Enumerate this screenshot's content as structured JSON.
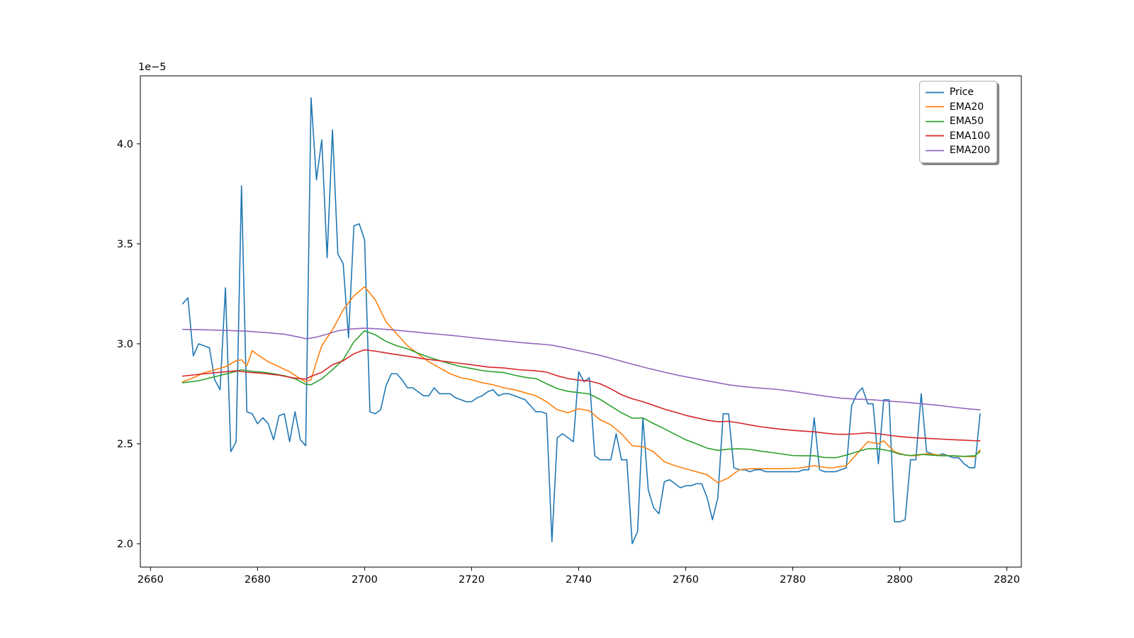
{
  "figure": {
    "background": "#ffffff",
    "y_offset_label": "1e−5"
  },
  "chart_data": {
    "type": "line",
    "title": "",
    "xlabel": "",
    "ylabel": "",
    "grid": false,
    "legend_position": "upper right",
    "xlim": [
      2658.1,
      2822.7
    ],
    "ylim": [
      1.883,
      4.34
    ],
    "xticks": [
      2660,
      2680,
      2700,
      2720,
      2740,
      2760,
      2780,
      2800,
      2820
    ],
    "xtick_labels": [
      "2660",
      "2680",
      "2700",
      "2720",
      "2740",
      "2760",
      "2780",
      "2800",
      "2820"
    ],
    "yticks": [
      2.0,
      2.5,
      3.0,
      3.5,
      4.0
    ],
    "ytick_labels": [
      "2.0",
      "2.5",
      "3.0",
      "3.5",
      "4.0"
    ],
    "y_offset_label": "1e−5",
    "series": [
      {
        "name": "Price",
        "color": "#1f77b4",
        "x": [
          2666,
          2667,
          2668,
          2669,
          2670,
          2671,
          2672,
          2673,
          2674,
          2675,
          2676,
          2677,
          2678,
          2679,
          2680,
          2681,
          2682,
          2683,
          2684,
          2685,
          2686,
          2687,
          2688,
          2689,
          2690,
          2691,
          2692,
          2693,
          2694,
          2695,
          2696,
          2697,
          2698,
          2699,
          2700,
          2701,
          2702,
          2703,
          2704,
          2705,
          2706,
          2707,
          2708,
          2709,
          2710,
          2711,
          2712,
          2713,
          2714,
          2715,
          2716,
          2717,
          2718,
          2719,
          2720,
          2721,
          2722,
          2723,
          2724,
          2725,
          2726,
          2727,
          2728,
          2729,
          2730,
          2731,
          2732,
          2733,
          2734,
          2735,
          2736,
          2737,
          2738,
          2739,
          2740,
          2741,
          2742,
          2743,
          2744,
          2745,
          2746,
          2747,
          2748,
          2749,
          2750,
          2751,
          2752,
          2753,
          2754,
          2755,
          2756,
          2757,
          2758,
          2759,
          2760,
          2761,
          2762,
          2763,
          2764,
          2765,
          2766,
          2767,
          2768,
          2769,
          2770,
          2771,
          2772,
          2773,
          2774,
          2775,
          2776,
          2777,
          2778,
          2779,
          2780,
          2781,
          2782,
          2783,
          2784,
          2785,
          2786,
          2787,
          2788,
          2789,
          2790,
          2791,
          2792,
          2793,
          2794,
          2795,
          2796,
          2797,
          2798,
          2799,
          2800,
          2801,
          2802,
          2803,
          2804,
          2805,
          2806,
          2807,
          2808,
          2809,
          2810,
          2811,
          2812,
          2813,
          2814,
          2815
        ],
        "y": [
          3.2,
          3.23,
          2.94,
          3.0,
          2.99,
          2.98,
          2.82,
          2.77,
          3.28,
          2.46,
          2.51,
          3.79,
          2.66,
          2.65,
          2.6,
          2.63,
          2.6,
          2.52,
          2.64,
          2.65,
          2.51,
          2.66,
          2.52,
          2.49,
          4.23,
          3.82,
          4.02,
          3.43,
          4.07,
          3.45,
          3.4,
          3.03,
          3.59,
          3.6,
          3.52,
          2.66,
          2.65,
          2.67,
          2.79,
          2.85,
          2.85,
          2.82,
          2.78,
          2.78,
          2.76,
          2.74,
          2.74,
          2.78,
          2.75,
          2.75,
          2.75,
          2.73,
          2.72,
          2.71,
          2.71,
          2.73,
          2.74,
          2.76,
          2.77,
          2.74,
          2.75,
          2.75,
          2.74,
          2.73,
          2.72,
          2.69,
          2.66,
          2.66,
          2.65,
          2.01,
          2.53,
          2.55,
          2.53,
          2.51,
          2.86,
          2.81,
          2.83,
          2.44,
          2.42,
          2.42,
          2.42,
          2.55,
          2.42,
          2.42,
          2.0,
          2.06,
          2.63,
          2.27,
          2.18,
          2.15,
          2.31,
          2.32,
          2.3,
          2.28,
          2.29,
          2.29,
          2.3,
          2.3,
          2.23,
          2.12,
          2.23,
          2.65,
          2.65,
          2.38,
          2.37,
          2.37,
          2.36,
          2.37,
          2.37,
          2.36,
          2.36,
          2.36,
          2.36,
          2.36,
          2.36,
          2.36,
          2.37,
          2.37,
          2.63,
          2.37,
          2.36,
          2.36,
          2.36,
          2.37,
          2.38,
          2.69,
          2.75,
          2.78,
          2.7,
          2.7,
          2.4,
          2.72,
          2.72,
          2.11,
          2.11,
          2.12,
          2.42,
          2.42,
          2.75,
          2.46,
          2.45,
          2.44,
          2.45,
          2.44,
          2.43,
          2.43,
          2.4,
          2.38,
          2.38,
          2.65
        ]
      },
      {
        "name": "EMA20",
        "color": "#ff7f0e",
        "x": [
          2666,
          2668,
          2670,
          2672,
          2674,
          2676,
          2677,
          2678,
          2679,
          2680,
          2682,
          2684,
          2686,
          2688,
          2689,
          2690,
          2691,
          2692,
          2694,
          2696,
          2698,
          2700,
          2702,
          2704,
          2706,
          2708,
          2710,
          2712,
          2714,
          2716,
          2718,
          2720,
          2722,
          2724,
          2726,
          2728,
          2730,
          2732,
          2734,
          2736,
          2738,
          2740,
          2742,
          2744,
          2746,
          2748,
          2750,
          2752,
          2754,
          2756,
          2758,
          2760,
          2762,
          2764,
          2766,
          2768,
          2770,
          2772,
          2775,
          2778,
          2781,
          2784,
          2787,
          2790,
          2792,
          2794,
          2796,
          2797,
          2799,
          2801,
          2803,
          2805,
          2808,
          2811,
          2814,
          2815
        ],
        "y": [
          2.81,
          2.83,
          2.855,
          2.87,
          2.885,
          2.915,
          2.92,
          2.89,
          2.965,
          2.945,
          2.91,
          2.885,
          2.86,
          2.825,
          2.81,
          2.82,
          2.91,
          2.99,
          3.07,
          3.17,
          3.24,
          3.285,
          3.22,
          3.11,
          3.05,
          2.99,
          2.95,
          2.91,
          2.88,
          2.85,
          2.83,
          2.82,
          2.805,
          2.795,
          2.78,
          2.77,
          2.755,
          2.74,
          2.71,
          2.67,
          2.655,
          2.675,
          2.665,
          2.62,
          2.595,
          2.55,
          2.49,
          2.485,
          2.46,
          2.41,
          2.39,
          2.375,
          2.36,
          2.345,
          2.305,
          2.33,
          2.37,
          2.375,
          2.375,
          2.375,
          2.378,
          2.39,
          2.378,
          2.39,
          2.45,
          2.51,
          2.5,
          2.515,
          2.46,
          2.443,
          2.44,
          2.45,
          2.442,
          2.437,
          2.435,
          2.47
        ]
      },
      {
        "name": "EMA50",
        "color": "#2ca02c",
        "x": [
          2666,
          2669,
          2672,
          2675,
          2677,
          2679,
          2681,
          2683,
          2685,
          2687,
          2689,
          2690,
          2692,
          2694,
          2696,
          2698,
          2700,
          2702,
          2704,
          2706,
          2708,
          2710,
          2712,
          2714,
          2716,
          2718,
          2720,
          2722,
          2724,
          2726,
          2728,
          2730,
          2732,
          2734,
          2736,
          2738,
          2740,
          2742,
          2744,
          2746,
          2748,
          2750,
          2752,
          2754,
          2756,
          2758,
          2760,
          2762,
          2764,
          2766,
          2768,
          2770,
          2772,
          2774,
          2776,
          2778,
          2780,
          2782,
          2784,
          2786,
          2788,
          2790,
          2792,
          2794,
          2796,
          2798,
          2800,
          2802,
          2804,
          2806,
          2808,
          2810,
          2812,
          2814,
          2815
        ],
        "y": [
          2.805,
          2.815,
          2.835,
          2.855,
          2.87,
          2.862,
          2.858,
          2.85,
          2.84,
          2.825,
          2.797,
          2.795,
          2.825,
          2.87,
          2.92,
          3.01,
          3.065,
          3.045,
          3.012,
          2.99,
          2.975,
          2.953,
          2.933,
          2.916,
          2.9,
          2.886,
          2.876,
          2.866,
          2.86,
          2.856,
          2.843,
          2.832,
          2.826,
          2.8,
          2.776,
          2.762,
          2.756,
          2.749,
          2.722,
          2.688,
          2.655,
          2.628,
          2.629,
          2.601,
          2.575,
          2.547,
          2.52,
          2.5,
          2.478,
          2.467,
          2.473,
          2.475,
          2.472,
          2.463,
          2.456,
          2.449,
          2.441,
          2.44,
          2.44,
          2.431,
          2.43,
          2.443,
          2.46,
          2.475,
          2.475,
          2.465,
          2.448,
          2.441,
          2.447,
          2.443,
          2.44,
          2.44,
          2.437,
          2.44,
          2.461
        ]
      },
      {
        "name": "EMA100",
        "color": "#d62728",
        "x": [
          2666,
          2670,
          2674,
          2676,
          2678,
          2681,
          2684,
          2687,
          2689,
          2690,
          2692,
          2694,
          2696,
          2698,
          2700,
          2702,
          2705,
          2708,
          2711,
          2714,
          2717,
          2720,
          2723,
          2726,
          2729,
          2732,
          2734,
          2736,
          2738,
          2740,
          2742,
          2744,
          2746,
          2748,
          2750,
          2752,
          2754,
          2756,
          2758,
          2760,
          2762,
          2764,
          2766,
          2768,
          2770,
          2772,
          2774,
          2776,
          2778,
          2780,
          2782,
          2784,
          2786,
          2788,
          2790,
          2792,
          2794,
          2796,
          2798,
          2800,
          2802,
          2804,
          2806,
          2808,
          2810,
          2812,
          2814,
          2815
        ],
        "y": [
          2.838,
          2.85,
          2.86,
          2.865,
          2.858,
          2.852,
          2.843,
          2.828,
          2.823,
          2.837,
          2.857,
          2.895,
          2.915,
          2.95,
          2.97,
          2.963,
          2.95,
          2.938,
          2.925,
          2.915,
          2.905,
          2.895,
          2.884,
          2.879,
          2.87,
          2.865,
          2.858,
          2.84,
          2.826,
          2.818,
          2.814,
          2.8,
          2.775,
          2.745,
          2.725,
          2.71,
          2.692,
          2.673,
          2.658,
          2.642,
          2.63,
          2.618,
          2.61,
          2.612,
          2.604,
          2.594,
          2.585,
          2.578,
          2.572,
          2.567,
          2.563,
          2.56,
          2.553,
          2.548,
          2.547,
          2.55,
          2.555,
          2.55,
          2.542,
          2.536,
          2.531,
          2.528,
          2.526,
          2.523,
          2.52,
          2.518,
          2.515,
          2.515
        ]
      },
      {
        "name": "EMA200",
        "color": "#9467bd",
        "x": [
          2666,
          2670,
          2674,
          2678,
          2682,
          2685,
          2688,
          2689,
          2691,
          2693,
          2695,
          2697,
          2700,
          2703,
          2706,
          2709,
          2712,
          2715,
          2718,
          2721,
          2724,
          2727,
          2730,
          2733,
          2735,
          2738,
          2741,
          2744,
          2747,
          2750,
          2753,
          2756,
          2759,
          2762,
          2765,
          2768,
          2771,
          2774,
          2777,
          2780,
          2783,
          2786,
          2789,
          2792,
          2795,
          2798,
          2801,
          2804,
          2807,
          2810,
          2813,
          2815
        ],
        "y": [
          3.072,
          3.07,
          3.067,
          3.063,
          3.055,
          3.048,
          3.032,
          3.025,
          3.033,
          3.048,
          3.065,
          3.073,
          3.078,
          3.074,
          3.068,
          3.06,
          3.052,
          3.045,
          3.037,
          3.028,
          3.02,
          3.012,
          3.004,
          2.998,
          2.993,
          2.977,
          2.96,
          2.942,
          2.92,
          2.898,
          2.877,
          2.858,
          2.84,
          2.825,
          2.81,
          2.795,
          2.785,
          2.778,
          2.772,
          2.762,
          2.75,
          2.738,
          2.728,
          2.723,
          2.72,
          2.713,
          2.708,
          2.7,
          2.693,
          2.683,
          2.674,
          2.67
        ]
      }
    ]
  },
  "legend": {
    "items": [
      {
        "label": "Price",
        "color": "#1f77b4"
      },
      {
        "label": "EMA20",
        "color": "#ff7f0e"
      },
      {
        "label": "EMA50",
        "color": "#2ca02c"
      },
      {
        "label": "EMA100",
        "color": "#d62728"
      },
      {
        "label": "EMA200",
        "color": "#9467bd"
      }
    ]
  }
}
